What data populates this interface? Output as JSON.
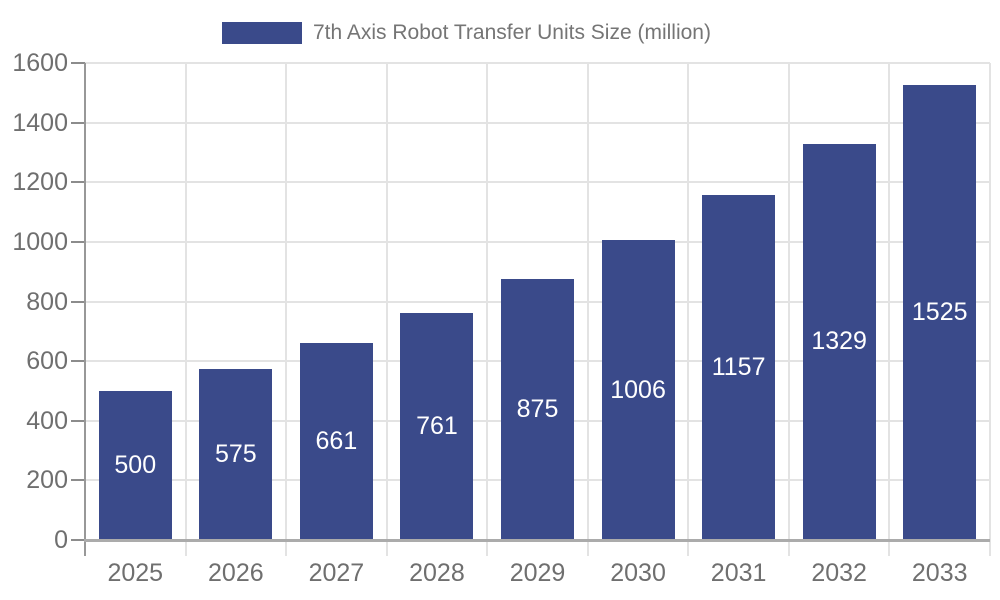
{
  "chart_data": {
    "type": "bar",
    "title": "7th Axis Robot Transfer Units Size (million)",
    "categories": [
      "2025",
      "2026",
      "2027",
      "2028",
      "2029",
      "2030",
      "2031",
      "2032",
      "2033"
    ],
    "values": [
      500,
      575,
      661,
      761,
      875,
      1006,
      1157,
      1329,
      1525
    ],
    "series": [
      {
        "name": "7th Axis Robot Transfer Units Size (million)",
        "values": [
          500,
          575,
          661,
          761,
          875,
          1006,
          1157,
          1329,
          1525
        ]
      }
    ],
    "xlabel": "",
    "ylabel": "",
    "ylim": [
      0,
      1600
    ],
    "y_ticks": [
      0,
      200,
      400,
      600,
      800,
      1000,
      1200,
      1400,
      1600
    ],
    "grid": true,
    "legend_position": "top",
    "value_labels": "centered-inside-bars",
    "colors": {
      "bar": "#3A4A8A",
      "grid": "#E3E3E3",
      "axis_line": "#ABABAB",
      "spine": "#989898",
      "tick": "#8C8C8C",
      "tick_label": "#6F6F6F",
      "legend_text": "#757575",
      "value_label": "#FFFFFF",
      "background": "#FFFFFF"
    }
  }
}
